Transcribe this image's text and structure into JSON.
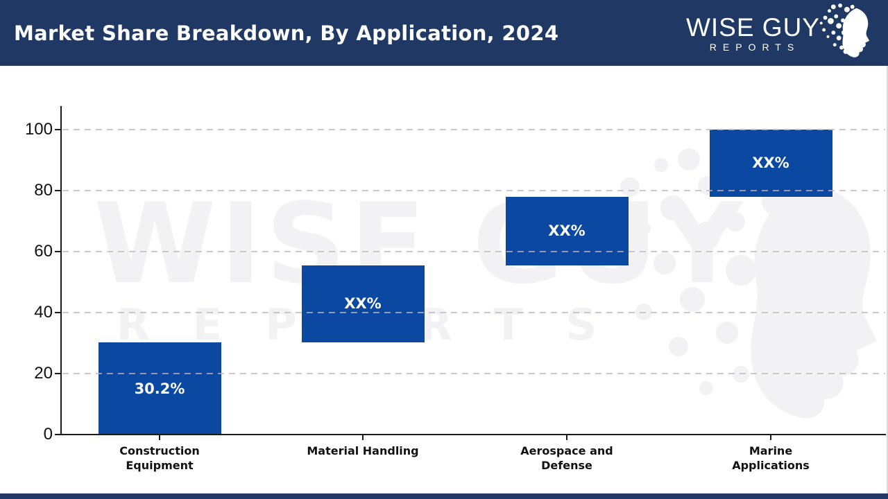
{
  "header": {
    "title": "Market Share Breakdown, By Application, 2024",
    "logo": {
      "line1": "WISE GUY",
      "line2": "REPORTS"
    }
  },
  "watermark": {
    "line1": "WISE GUY",
    "line2": "REPORTS"
  },
  "footer": {},
  "chart_data": {
    "type": "bar",
    "subtype": "floating-waterfall",
    "title": "Market Share Breakdown, By Application, 2024",
    "categories": [
      "Construction Equipment",
      "Material Handling",
      "Aerospace and Defense",
      "Marine Applications"
    ],
    "category_label_lines": [
      [
        "Construction",
        "Equipment"
      ],
      [
        "Material Handling"
      ],
      [
        "Aerospace and",
        "Defense"
      ],
      [
        "Marine",
        "Applications"
      ]
    ],
    "bars": [
      {
        "category": "Construction Equipment",
        "base": 0,
        "top": 30.2,
        "label": "30.2%"
      },
      {
        "category": "Material Handling",
        "base": 30.2,
        "top": 55.5,
        "label": "XX%"
      },
      {
        "category": "Aerospace and Defense",
        "base": 55.5,
        "top": 78,
        "label": "XX%"
      },
      {
        "category": "Marine Applications",
        "base": 78,
        "top": 100,
        "label": "XX%"
      }
    ],
    "y_ticks": [
      0,
      20,
      40,
      60,
      80,
      100
    ],
    "ylim": [
      0,
      107
    ],
    "xlabel": "",
    "ylabel": "",
    "grid": "horizontal dashed, drawn over bars",
    "legend": "none",
    "colors": {
      "header_bg": "#1F3864",
      "bar": "#0A48A2",
      "grid": "#D9D9DE",
      "axis": "#1A1A1A",
      "bar_label": "#FFFFFF",
      "watermark": "#F2F2F5"
    }
  }
}
